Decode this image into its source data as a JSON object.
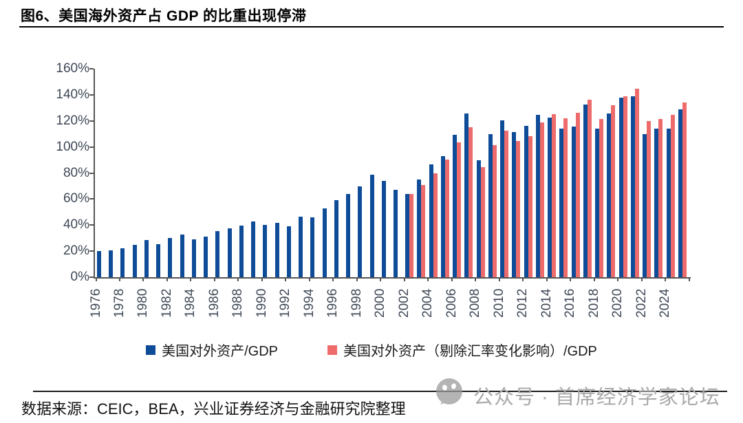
{
  "title": "图6、美国海外资产占 GDP 的比重出现停滞",
  "legend": [
    {
      "label": "美国对外资产/GDP",
      "color": "#0e4c97"
    },
    {
      "label": "美国对外资产（剔除汇率变化影响）/GDP",
      "color": "#ee6b6c"
    }
  ],
  "footer": {
    "source_text": "数据来源：CEIC，BEA，兴业证券经济与金融研究院整理"
  },
  "watermark": {
    "icon": "wechat-icon",
    "text": "公众号 · 首席经济学家论坛",
    "color": "#a9a9a9"
  },
  "colors": {
    "blue_series": "#0e4c97",
    "red_series": "#ee6b6c",
    "axis": "#555555",
    "axis_label": "#3f4856"
  },
  "chart_data": {
    "type": "bar",
    "title": "图6、美国海外资产占 GDP 的比重出现停滞",
    "xlabel": "",
    "ylabel": "",
    "ylim": [
      0,
      160
    ],
    "y_ticks_pct": [
      0,
      20,
      40,
      60,
      80,
      100,
      120,
      140,
      160
    ],
    "y_tick_labels": [
      "0%",
      "20%",
      "40%",
      "60%",
      "80%",
      "100%",
      "120%",
      "140%",
      "160%"
    ],
    "x_tick_step_years": 2,
    "grid": false,
    "legend_position": "bottom",
    "x": [
      1976,
      1977,
      1978,
      1979,
      1980,
      1981,
      1982,
      1983,
      1984,
      1985,
      1986,
      1987,
      1988,
      1989,
      1990,
      1991,
      1992,
      1993,
      1994,
      1995,
      1996,
      1997,
      1998,
      1999,
      2000,
      2001,
      2002,
      2003,
      2004,
      2005,
      2006,
      2007,
      2008,
      2009,
      2010,
      2011,
      2012,
      2013,
      2014,
      2015,
      2016,
      2017,
      2018,
      2019,
      2020,
      2021,
      2022,
      2023,
      2024,
      2025
    ],
    "series": [
      {
        "name": "美国对外资产/GDP",
        "color": "#0e4c97",
        "values": [
          20,
          20.5,
          22,
          25,
          28.5,
          25.5,
          30,
          32.5,
          29,
          31,
          35.5,
          37.5,
          39.5,
          43,
          40,
          41.5,
          39,
          46.5,
          46,
          53,
          59,
          64,
          69.5,
          78.5,
          74,
          67,
          64,
          75,
          86.5,
          93,
          109.5,
          125.5,
          90,
          110,
          120.5,
          111.5,
          116,
          124.5,
          122.5,
          114,
          115.5,
          132.5,
          114,
          125.5,
          138,
          139,
          110,
          114,
          114,
          129
        ]
      },
      {
        "name": "美国对外资产（剔除汇率变化影响）/GDP",
        "color": "#ee6b6c",
        "values": [
          null,
          null,
          null,
          null,
          null,
          null,
          null,
          null,
          null,
          null,
          null,
          null,
          null,
          null,
          null,
          null,
          null,
          null,
          null,
          null,
          null,
          null,
          null,
          null,
          null,
          null,
          64,
          70.5,
          80,
          90.5,
          103.5,
          115,
          84.5,
          101.5,
          112.5,
          104.5,
          108.5,
          119,
          125,
          122,
          126,
          136.5,
          121.5,
          132,
          139,
          144.5,
          120,
          121.5,
          124.5,
          134
        ]
      }
    ]
  }
}
